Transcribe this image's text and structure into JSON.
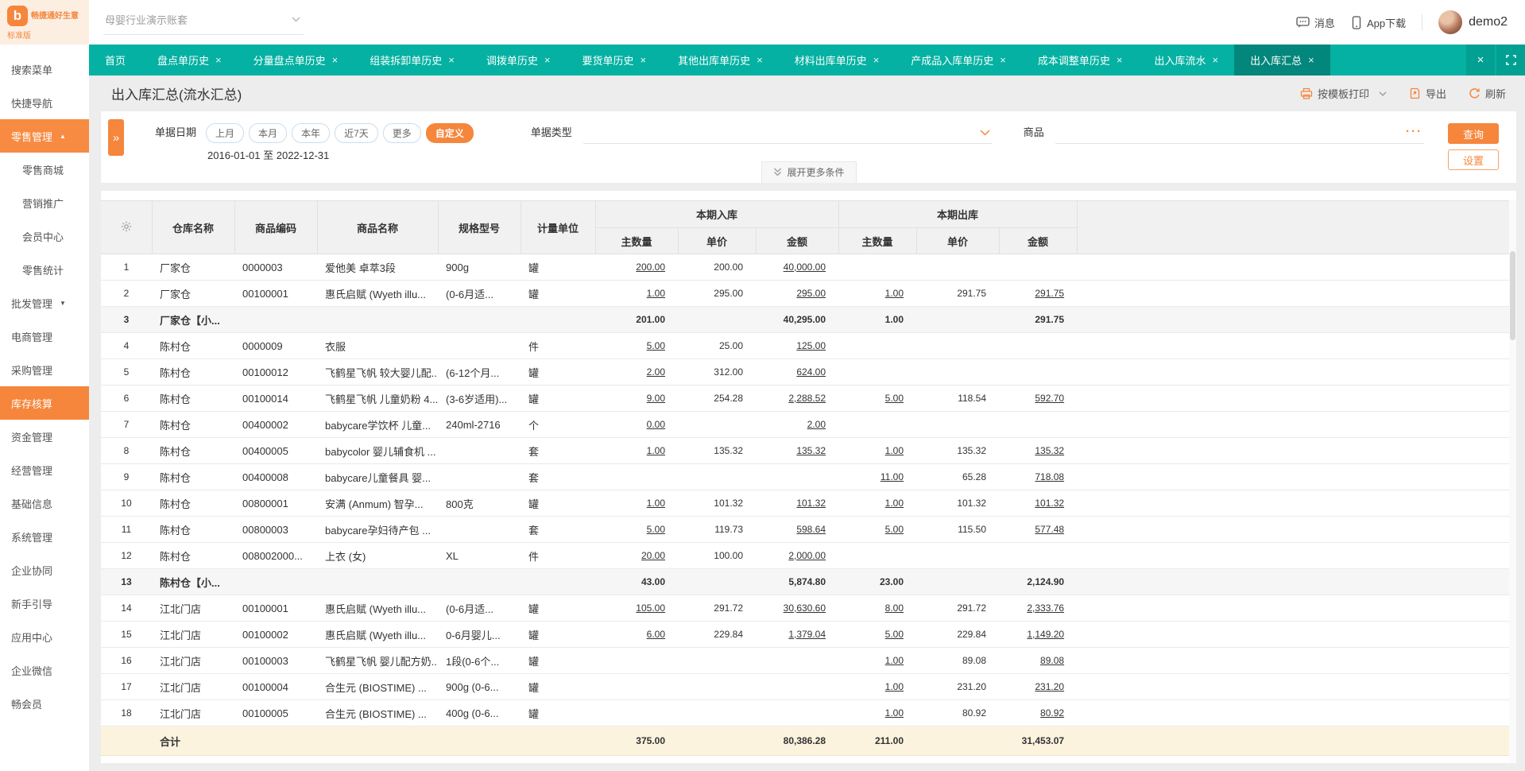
{
  "colors": {
    "teal": "#04b1a2",
    "teal_active_tab": "#03867b",
    "orange": "#f5863c",
    "total_row_bg": "#fcf3de"
  },
  "logo": {
    "brand": "畅捷通好生意",
    "edition": "标准版"
  },
  "topbar": {
    "account": "母婴行业演示账套",
    "messages": "消息",
    "app_download": "App下载",
    "username": "demo2"
  },
  "sidebar": {
    "items": [
      {
        "label": "搜索菜单"
      },
      {
        "label": "快捷导航"
      },
      {
        "label": "零售管理",
        "parent": true,
        "expanded": true,
        "highlight": "parent"
      },
      {
        "label": "零售商城",
        "child": true
      },
      {
        "label": "营销推广",
        "child": true
      },
      {
        "label": "会员中心",
        "child": true
      },
      {
        "label": "零售统计",
        "child": true
      },
      {
        "label": "批发管理",
        "parent": true,
        "expanded": false
      },
      {
        "label": "电商管理"
      },
      {
        "label": "采购管理"
      },
      {
        "label": "库存核算",
        "highlight": "active"
      },
      {
        "label": "资金管理"
      },
      {
        "label": "经营管理"
      },
      {
        "label": "基础信息"
      },
      {
        "label": "系统管理"
      },
      {
        "label": "企业协同"
      },
      {
        "label": "新手引导"
      },
      {
        "label": "应用中心"
      },
      {
        "label": "企业微信"
      },
      {
        "label": "畅会员"
      }
    ]
  },
  "tabbar": {
    "tabs": [
      {
        "label": "首页",
        "closable": false
      },
      {
        "label": "盘点单历史",
        "closable": true
      },
      {
        "label": "分量盘点单历史",
        "closable": true
      },
      {
        "label": "组装拆卸单历史",
        "closable": true
      },
      {
        "label": "调拨单历史",
        "closable": true
      },
      {
        "label": "要货单历史",
        "closable": true
      },
      {
        "label": "其他出库单历史",
        "closable": true
      },
      {
        "label": "材料出库单历史",
        "closable": true
      },
      {
        "label": "产成品入库单历史",
        "closable": true
      },
      {
        "label": "成本调整单历史",
        "closable": true
      },
      {
        "label": "出入库流水",
        "closable": true
      },
      {
        "label": "出入库汇总",
        "closable": true,
        "active": true
      }
    ],
    "close_all_icon": "×",
    "fullscreen_icon": "fullscreen"
  },
  "page": {
    "title": "出入库汇总(流水汇总)",
    "toolbar": {
      "print": "按模板打印",
      "export": "导出",
      "refresh": "刷新"
    }
  },
  "filters": {
    "collapse_icon": "»",
    "date_label": "单据日期",
    "date_options": [
      "上月",
      "本月",
      "本年",
      "近7天",
      "更多"
    ],
    "date_custom": "自定义",
    "date_range": "2016-01-01 至 2022-12-31",
    "doc_type_label": "单据类型",
    "doc_type_value": "",
    "product_label": "商品",
    "product_value": "",
    "product_more_icon": "···",
    "search_button": "查询",
    "settings_button": "设置",
    "expand_more": "展开更多条件"
  },
  "table": {
    "header": {
      "warehouse": "仓库名称",
      "code": "商品编码",
      "name": "商品名称",
      "spec": "规格型号",
      "unit": "计量单位",
      "group_in": "本期入库",
      "group_out": "本期出库",
      "qty": "主数量",
      "price": "单价",
      "amount": "金额"
    },
    "rows": [
      {
        "type": "data",
        "num": "1",
        "warehouse": "厂家仓",
        "code": "0000003",
        "name": "爱他美 卓萃3段",
        "spec": "900g",
        "unit": "罐",
        "in_qty": "200.00",
        "in_price": "200.00",
        "in_amt": "40,000.00",
        "out_qty": "",
        "out_price": "",
        "out_amt": ""
      },
      {
        "type": "data",
        "num": "2",
        "warehouse": "厂家仓",
        "code": "00100001",
        "name": "惠氏启赋 (Wyeth illu...",
        "spec": "(0-6月适...",
        "unit": "罐",
        "in_qty": "1.00",
        "in_price": "295.00",
        "in_amt": "295.00",
        "out_qty": "1.00",
        "out_price": "291.75",
        "out_amt": "291.75"
      },
      {
        "type": "subtotal",
        "num": "3",
        "warehouse": "厂家仓【小...",
        "code": "",
        "name": "",
        "spec": "",
        "unit": "",
        "in_qty": "201.00",
        "in_price": "",
        "in_amt": "40,295.00",
        "out_qty": "1.00",
        "out_price": "",
        "out_amt": "291.75"
      },
      {
        "type": "data",
        "num": "4",
        "warehouse": "陈村仓",
        "code": "0000009",
        "name": "衣服",
        "spec": "",
        "unit": "件",
        "in_qty": "5.00",
        "in_price": "25.00",
        "in_amt": "125.00",
        "out_qty": "",
        "out_price": "",
        "out_amt": ""
      },
      {
        "type": "data",
        "num": "5",
        "warehouse": "陈村仓",
        "code": "00100012",
        "name": "飞鹤星飞帆 较大婴儿配...",
        "spec": "(6-12个月...",
        "unit": "罐",
        "in_qty": "2.00",
        "in_price": "312.00",
        "in_amt": "624.00",
        "out_qty": "",
        "out_price": "",
        "out_amt": ""
      },
      {
        "type": "data",
        "num": "6",
        "warehouse": "陈村仓",
        "code": "00100014",
        "name": "飞鹤星飞帆 儿童奶粉 4...",
        "spec": "(3-6岁适用)...",
        "unit": "罐",
        "in_qty": "9.00",
        "in_price": "254.28",
        "in_amt": "2,288.52",
        "out_qty": "5.00",
        "out_price": "118.54",
        "out_amt": "592.70"
      },
      {
        "type": "data",
        "num": "7",
        "warehouse": "陈村仓",
        "code": "00400002",
        "name": "babycare学饮杯 儿童...",
        "spec": "240ml-2716",
        "unit": "个",
        "in_qty": "0.00",
        "in_price": "",
        "in_amt": "2.00",
        "out_qty": "",
        "out_price": "",
        "out_amt": ""
      },
      {
        "type": "data",
        "num": "8",
        "warehouse": "陈村仓",
        "code": "00400005",
        "name": "babycolor 婴儿辅食机 ...",
        "spec": "",
        "unit": "套",
        "in_qty": "1.00",
        "in_price": "135.32",
        "in_amt": "135.32",
        "out_qty": "1.00",
        "out_price": "135.32",
        "out_amt": "135.32"
      },
      {
        "type": "data",
        "num": "9",
        "warehouse": "陈村仓",
        "code": "00400008",
        "name": "babycare儿童餐具 婴...",
        "spec": "",
        "unit": "套",
        "in_qty": "",
        "in_price": "",
        "in_amt": "",
        "out_qty": "11.00",
        "out_price": "65.28",
        "out_amt": "718.08"
      },
      {
        "type": "data",
        "num": "10",
        "warehouse": "陈村仓",
        "code": "00800001",
        "name": "安满 (Anmum) 智孕...",
        "spec": "800克",
        "unit": "罐",
        "in_qty": "1.00",
        "in_price": "101.32",
        "in_amt": "101.32",
        "out_qty": "1.00",
        "out_price": "101.32",
        "out_amt": "101.32"
      },
      {
        "type": "data",
        "num": "11",
        "warehouse": "陈村仓",
        "code": "00800003",
        "name": "babycare孕妇待产包 ...",
        "spec": "",
        "unit": "套",
        "in_qty": "5.00",
        "in_price": "119.73",
        "in_amt": "598.64",
        "out_qty": "5.00",
        "out_price": "115.50",
        "out_amt": "577.48"
      },
      {
        "type": "data",
        "num": "12",
        "warehouse": "陈村仓",
        "code": "008002000...",
        "name": "上衣 (女)",
        "spec": "XL",
        "unit": "件",
        "in_qty": "20.00",
        "in_price": "100.00",
        "in_amt": "2,000.00",
        "out_qty": "",
        "out_price": "",
        "out_amt": ""
      },
      {
        "type": "subtotal",
        "num": "13",
        "warehouse": "陈村仓【小...",
        "code": "",
        "name": "",
        "spec": "",
        "unit": "",
        "in_qty": "43.00",
        "in_price": "",
        "in_amt": "5,874.80",
        "out_qty": "23.00",
        "out_price": "",
        "out_amt": "2,124.90"
      },
      {
        "type": "data",
        "num": "14",
        "warehouse": "江北门店",
        "code": "00100001",
        "name": "惠氏启赋 (Wyeth illu...",
        "spec": "(0-6月适...",
        "unit": "罐",
        "in_qty": "105.00",
        "in_price": "291.72",
        "in_amt": "30,630.60",
        "out_qty": "8.00",
        "out_price": "291.72",
        "out_amt": "2,333.76"
      },
      {
        "type": "data",
        "num": "15",
        "warehouse": "江北门店",
        "code": "00100002",
        "name": "惠氏启赋 (Wyeth illu...",
        "spec": "0-6月婴儿...",
        "unit": "罐",
        "in_qty": "6.00",
        "in_price": "229.84",
        "in_amt": "1,379.04",
        "out_qty": "5.00",
        "out_price": "229.84",
        "out_amt": "1,149.20"
      },
      {
        "type": "data",
        "num": "16",
        "warehouse": "江北门店",
        "code": "00100003",
        "name": "飞鹤星飞帆 婴儿配方奶...",
        "spec": "1段(0-6个...",
        "unit": "罐",
        "in_qty": "",
        "in_price": "",
        "in_amt": "",
        "out_qty": "1.00",
        "out_price": "89.08",
        "out_amt": "89.08"
      },
      {
        "type": "data",
        "num": "17",
        "warehouse": "江北门店",
        "code": "00100004",
        "name": "合生元 (BIOSTIME) ...",
        "spec": "900g (0-6...",
        "unit": "罐",
        "in_qty": "",
        "in_price": "",
        "in_amt": "",
        "out_qty": "1.00",
        "out_price": "231.20",
        "out_amt": "231.20"
      },
      {
        "type": "data",
        "num": "18",
        "warehouse": "江北门店",
        "code": "00100005",
        "name": "合生元 (BIOSTIME) ...",
        "spec": "400g (0-6...",
        "unit": "罐",
        "in_qty": "",
        "in_price": "",
        "in_amt": "",
        "out_qty": "1.00",
        "out_price": "80.92",
        "out_amt": "80.92"
      },
      {
        "type": "total",
        "num": "",
        "warehouse": "合计",
        "code": "",
        "name": "",
        "spec": "",
        "unit": "",
        "in_qty": "375.00",
        "in_price": "",
        "in_amt": "80,386.28",
        "out_qty": "211.00",
        "out_price": "",
        "out_amt": "31,453.07"
      }
    ]
  }
}
